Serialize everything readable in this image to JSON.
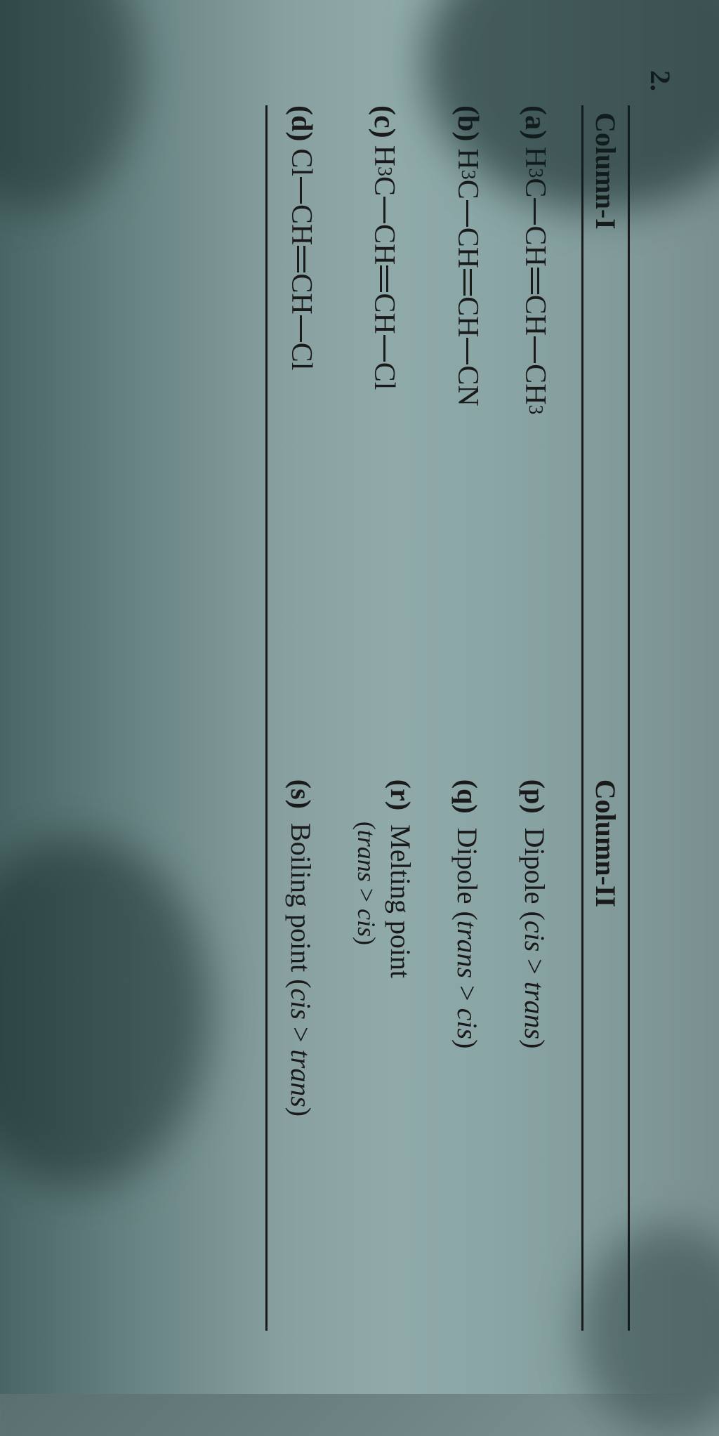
{
  "question_number": "2.",
  "columns": {
    "col1_header": "Column-I",
    "col2_header": "Column-II"
  },
  "rows": [
    {
      "left_label": "(a)",
      "left_prefix": "H",
      "left_sub1": "3",
      "left_g1": "C",
      "left_g2": "CH",
      "left_g3": "CH",
      "left_g4": "CH",
      "left_sub2": "3",
      "bond1": "single",
      "bond2": "double",
      "bond3": "single",
      "right_label": "(p)",
      "right_text": "Dipole (",
      "right_italic1": "cis",
      "right_mid": " > ",
      "right_italic2": "trans",
      "right_suffix": ")"
    },
    {
      "left_label": "(b)",
      "left_prefix": "H",
      "left_sub1": "3",
      "left_g1": "C",
      "left_g2": "CH",
      "left_g3": "CH",
      "left_g4": "CN",
      "left_sub2": "",
      "bond1": "single",
      "bond2": "double",
      "bond3": "single",
      "right_label": "(q)",
      "right_text": "Dipole (",
      "right_italic1": "trans",
      "right_mid": " > ",
      "right_italic2": "cis",
      "right_suffix": ")"
    },
    {
      "left_label": "(c)",
      "left_prefix": "H",
      "left_sub1": "3",
      "left_g1": "C",
      "left_g2": "CH",
      "left_g3": "CH",
      "left_g4": "Cl",
      "left_sub2": "",
      "bond1": "single",
      "bond2": "double",
      "bond3": "single",
      "right_label": "(r)",
      "right_text": "Melting point",
      "right_italic1": "",
      "right_mid": "",
      "right_italic2": "",
      "right_suffix": "",
      "right_line2_open": "(",
      "right_line2_italic1": "trans",
      "right_line2_mid": " > ",
      "right_line2_italic2": "cis",
      "right_line2_close": ")"
    },
    {
      "left_label": "(d)",
      "left_prefix": "Cl",
      "left_sub1": "",
      "left_g1": "",
      "left_g2": "CH",
      "left_g3": "CH",
      "left_g4": "Cl",
      "left_sub2": "",
      "bond1": "single",
      "bond2": "double",
      "bond3": "single",
      "right_label": "(s)",
      "right_text": "Boiling point (",
      "right_italic1": "cis",
      "right_mid": " > ",
      "right_italic2": "trans",
      "right_suffix": ")"
    }
  ]
}
